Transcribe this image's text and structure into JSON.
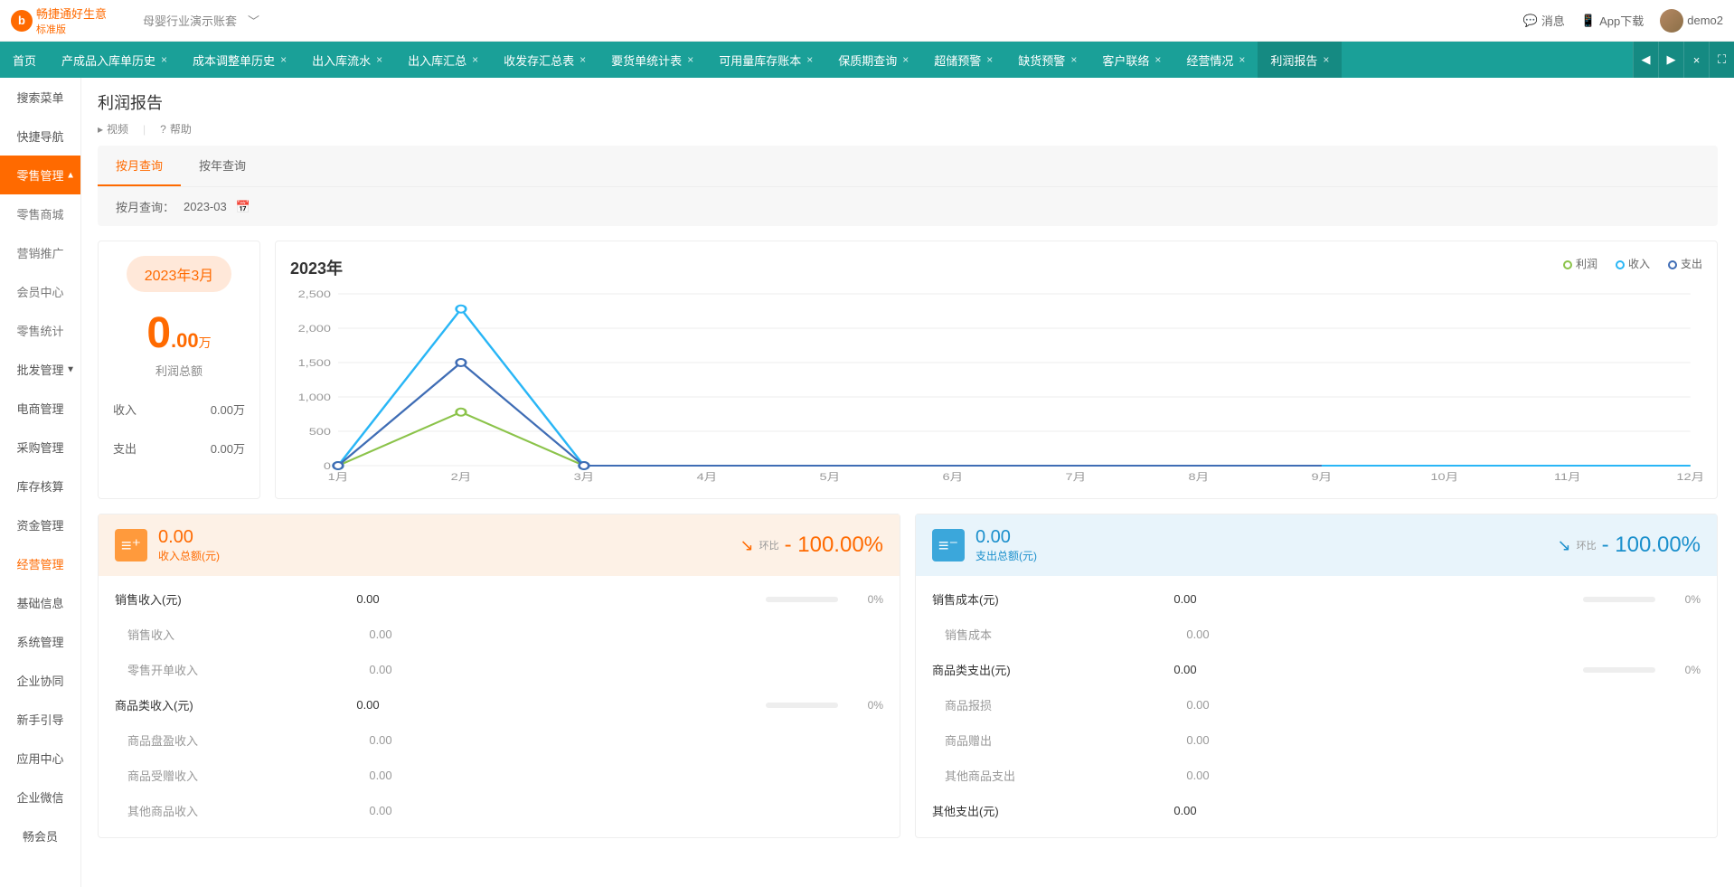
{
  "brand": {
    "name": "畅捷通好生意",
    "edition": "标准版"
  },
  "account_selector": "母婴行业演示账套",
  "topbar": {
    "message": "消息",
    "app": "App下载",
    "user": "demo2"
  },
  "tabs": [
    {
      "label": "首页",
      "closable": false
    },
    {
      "label": "产成品入库单历史",
      "closable": true
    },
    {
      "label": "成本调整单历史",
      "closable": true
    },
    {
      "label": "出入库流水",
      "closable": true
    },
    {
      "label": "出入库汇总",
      "closable": true
    },
    {
      "label": "收发存汇总表",
      "closable": true
    },
    {
      "label": "要货单统计表",
      "closable": true
    },
    {
      "label": "可用量库存账本",
      "closable": true
    },
    {
      "label": "保质期查询",
      "closable": true
    },
    {
      "label": "超储预警",
      "closable": true
    },
    {
      "label": "缺货预警",
      "closable": true
    },
    {
      "label": "客户联络",
      "closable": true
    },
    {
      "label": "经营情况",
      "closable": true
    },
    {
      "label": "利润报告",
      "closable": true,
      "active": true
    }
  ],
  "sidebar": [
    {
      "label": "搜索菜单"
    },
    {
      "label": "快捷导航"
    },
    {
      "label": "零售管理",
      "active": true,
      "caret": "▲"
    },
    {
      "label": "零售商城",
      "sub": true
    },
    {
      "label": "营销推广",
      "sub": true
    },
    {
      "label": "会员中心",
      "sub": true
    },
    {
      "label": "零售统计",
      "sub": true
    },
    {
      "label": "批发管理",
      "caret": "▼"
    },
    {
      "label": "电商管理"
    },
    {
      "label": "采购管理"
    },
    {
      "label": "库存核算"
    },
    {
      "label": "资金管理"
    },
    {
      "label": "经营管理",
      "highlight": true
    },
    {
      "label": "基础信息"
    },
    {
      "label": "系统管理"
    },
    {
      "label": "企业协同"
    },
    {
      "label": "新手引导"
    },
    {
      "label": "应用中心"
    },
    {
      "label": "企业微信"
    },
    {
      "label": "畅会员"
    }
  ],
  "page": {
    "title": "利润报告",
    "video": "视频",
    "help": "帮助",
    "query_tabs": [
      "按月查询",
      "按年查询"
    ],
    "query_label": "按月查询：",
    "query_value": "2023-03"
  },
  "summary": {
    "period": "2023年3月",
    "big_whole": "0",
    "big_dec": ".00",
    "big_unit": "万",
    "big_label": "利润总额",
    "income_label": "收入",
    "income_val": "0.00万",
    "expense_label": "支出",
    "expense_val": "0.00万"
  },
  "chart": {
    "title": "2023年",
    "type": "line",
    "x_labels": [
      "1月",
      "2月",
      "3月",
      "4月",
      "5月",
      "6月",
      "7月",
      "8月",
      "9月",
      "10月",
      "11月",
      "12月"
    ],
    "highlight_x_index": 2,
    "y_ticks": [
      0,
      500,
      1000,
      1500,
      2000,
      2500
    ],
    "ylim": [
      0,
      2500
    ],
    "series": [
      {
        "name": "利润",
        "color": "#8bc34a",
        "values": [
          0,
          780,
          0,
          0,
          0,
          0,
          0,
          0,
          0,
          0,
          0,
          0
        ]
      },
      {
        "name": "收入",
        "color": "#29b6f6",
        "values": [
          0,
          2280,
          0,
          0,
          0,
          0,
          0,
          0,
          0,
          0,
          0,
          0
        ]
      },
      {
        "name": "支出",
        "color": "#3f6db5",
        "values": [
          0,
          1500,
          0,
          0,
          0,
          0,
          0,
          0,
          0,
          0,
          0,
          0
        ],
        "flat_after_index": 8
      }
    ],
    "legend": [
      "利润",
      "收入",
      "支出"
    ],
    "grid_color": "#eeeeee",
    "bg": "#ffffff"
  },
  "income_panel": {
    "value": "0.00",
    "sub": "收入总额(元)",
    "delta_label": "环比",
    "delta": "- 100.00%",
    "accent": "#ff6a00",
    "rows": [
      {
        "label": "销售收入(元)",
        "val": "0.00",
        "pct": "0%",
        "bold": true
      },
      {
        "label": "销售收入",
        "val": "0.00",
        "sub": true
      },
      {
        "label": "零售开单收入",
        "val": "0.00",
        "sub": true
      },
      {
        "label": "商品类收入(元)",
        "val": "0.00",
        "pct": "0%",
        "bold": true
      },
      {
        "label": "商品盘盈收入",
        "val": "0.00",
        "sub": true
      },
      {
        "label": "商品受赠收入",
        "val": "0.00",
        "sub": true
      },
      {
        "label": "其他商品收入",
        "val": "0.00",
        "sub": true
      }
    ]
  },
  "expense_panel": {
    "value": "0.00",
    "sub": "支出总额(元)",
    "delta_label": "环比",
    "delta": "- 100.00%",
    "accent": "#1a8fcc",
    "rows": [
      {
        "label": "销售成本(元)",
        "val": "0.00",
        "pct": "0%",
        "bold": true
      },
      {
        "label": "销售成本",
        "val": "0.00",
        "sub": true
      },
      {
        "label": "商品类支出(元)",
        "val": "0.00",
        "pct": "0%",
        "bold": true
      },
      {
        "label": "商品报损",
        "val": "0.00",
        "sub": true
      },
      {
        "label": "商品赠出",
        "val": "0.00",
        "sub": true
      },
      {
        "label": "其他商品支出",
        "val": "0.00",
        "sub": true
      },
      {
        "label": "其他支出(元)",
        "val": "0.00",
        "bold": true
      }
    ]
  }
}
